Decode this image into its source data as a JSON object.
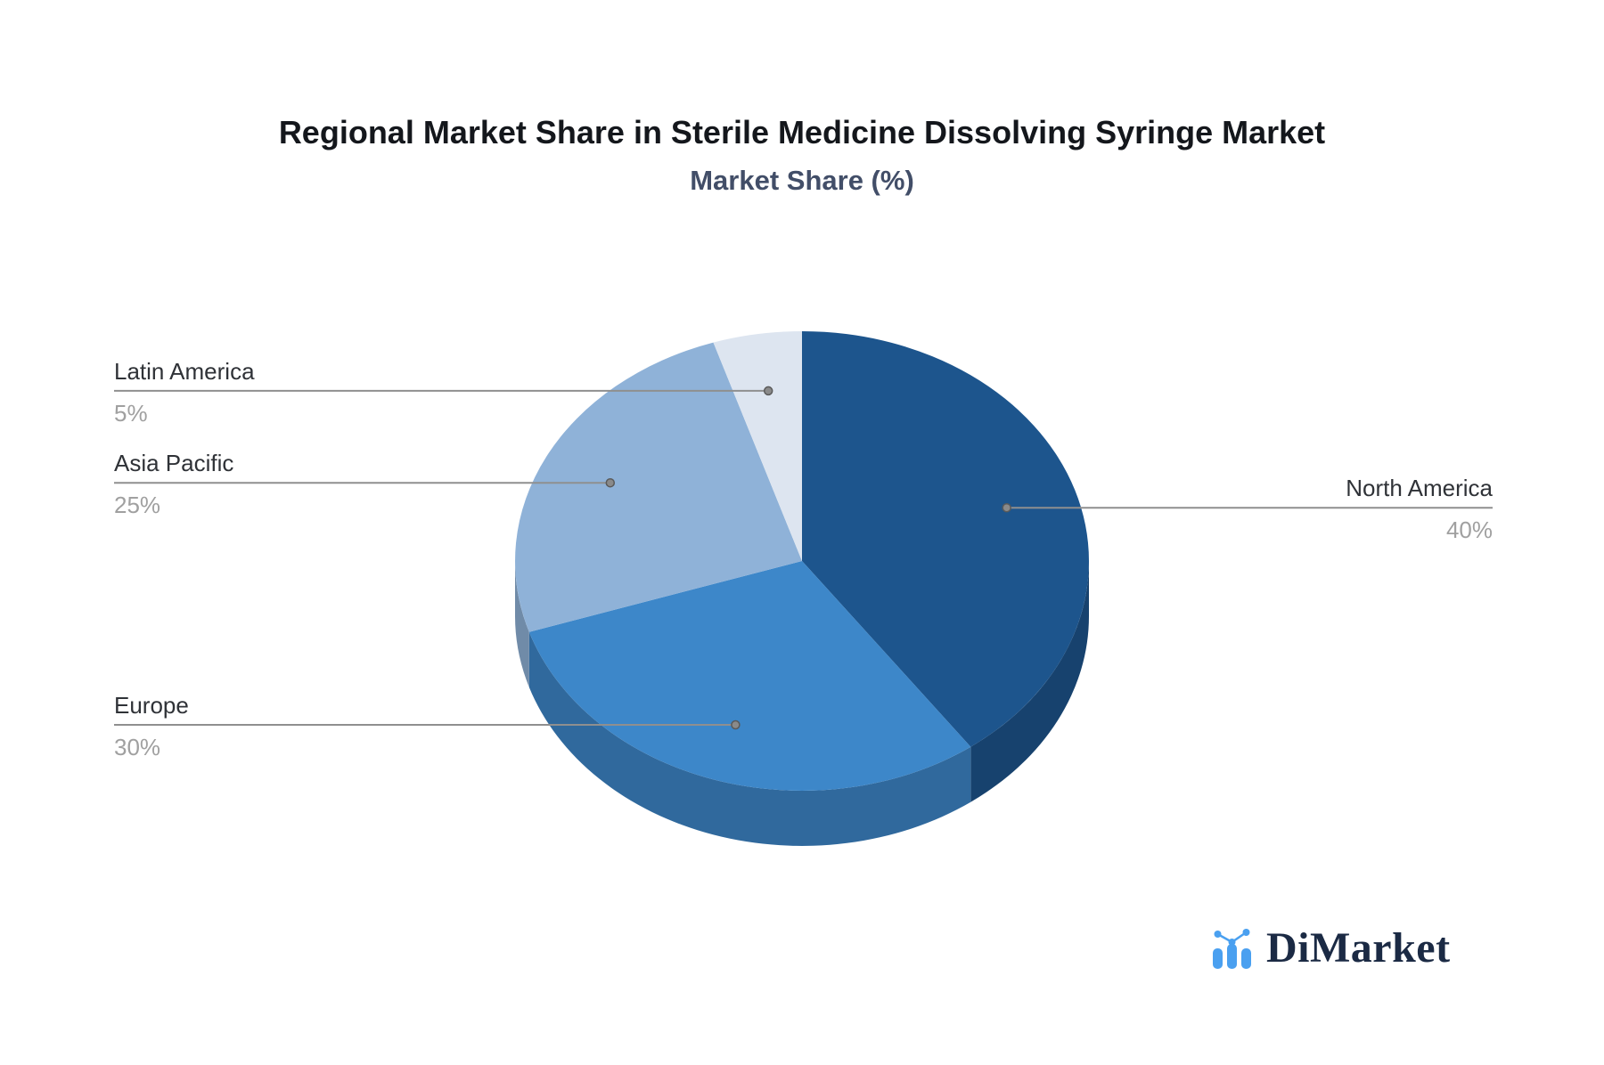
{
  "header": {
    "title": "Regional Market Share in Sterile Medicine Dissolving Syringe Market",
    "subtitle": "Market Share (%)"
  },
  "chart_data": {
    "type": "pie",
    "style": "3d-pie",
    "title": "Regional Market Share in Sterile Medicine Dissolving Syringe Market",
    "subtitle": "Market Share (%)",
    "unit": "%",
    "start_angle_deg": 90,
    "direction": "clockwise",
    "legend_position": "none",
    "slices": [
      {
        "name": "North America",
        "value": 40,
        "label": "40%",
        "color": "#1d558d",
        "label_side": "right"
      },
      {
        "name": "Europe",
        "value": 30,
        "label": "30%",
        "color": "#3d87c9",
        "label_side": "left"
      },
      {
        "name": "Asia Pacific",
        "value": 25,
        "label": "25%",
        "color": "#8fb2d8",
        "label_side": "left"
      },
      {
        "name": "Latin America",
        "value": 5,
        "label": "5%",
        "color": "#dde5f0",
        "label_side": "left"
      }
    ],
    "colors": {
      "leader_line": "#8f8f8f",
      "leader_dot": "#8a8a8a",
      "name_text": "#2f3237",
      "value_text": "#a0a0a0"
    }
  },
  "branding": {
    "logo_text": "DiMarket",
    "logo_icon": "bars-and-line-chart-icon",
    "logo_color": "#4aa0f0"
  }
}
